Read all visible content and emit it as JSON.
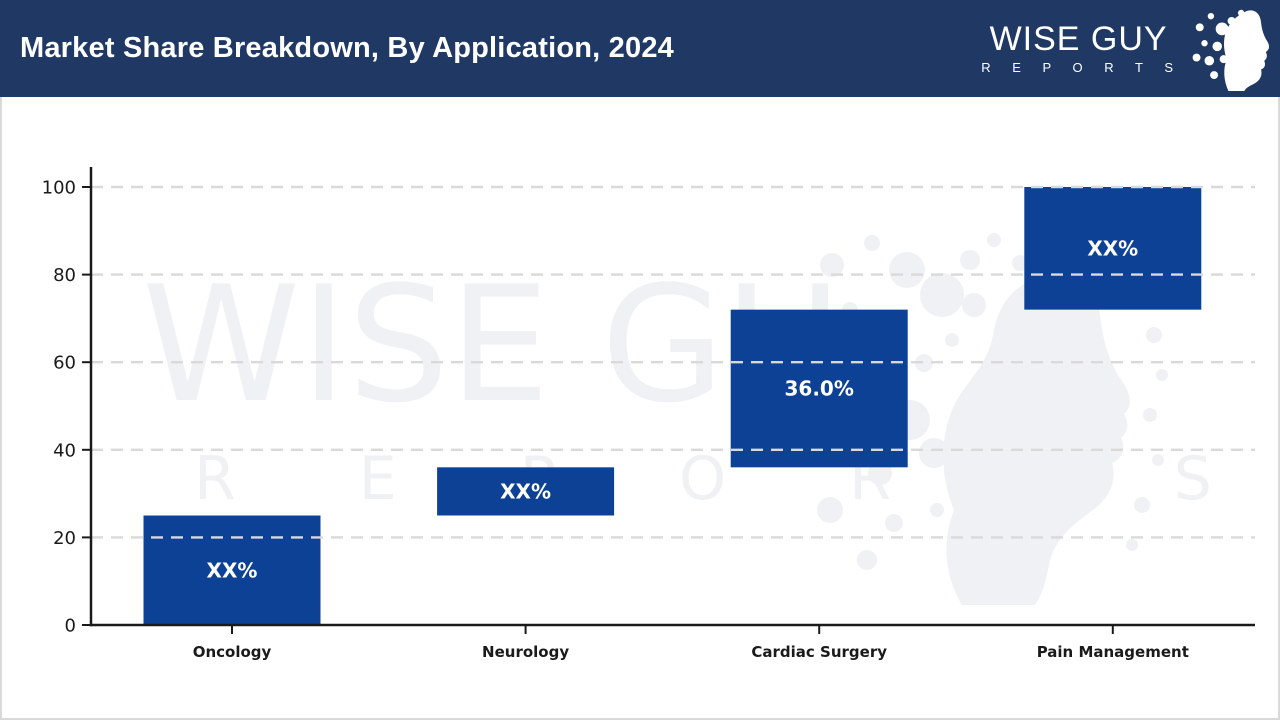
{
  "header": {
    "title": "Market Share Breakdown, By Application, 2024",
    "logo": {
      "name": "WISE GUY",
      "subtitle": "R E P O R T S"
    }
  },
  "watermark": {
    "name": "WISE GU",
    "subtitle": "R E P O R T S"
  },
  "chart_data": {
    "type": "bar",
    "subtype": "waterfall",
    "title": "Market Share Breakdown, By Application, 2024",
    "categories": [
      "Oncology",
      "Neurology",
      "Cardiac Surgery",
      "Pain Management"
    ],
    "segments": [
      {
        "category": "Oncology",
        "start": 0,
        "end": 25,
        "label": "XX%"
      },
      {
        "category": "Neurology",
        "start": 25,
        "end": 36,
        "label": "XX%"
      },
      {
        "category": "Cardiac Surgery",
        "start": 36,
        "end": 72,
        "label": "36.0%"
      },
      {
        "category": "Pain Management",
        "start": 72,
        "end": 100,
        "label": "XX%"
      }
    ],
    "ylim": [
      0,
      100
    ],
    "yticks": [
      0,
      20,
      40,
      60,
      80,
      100
    ],
    "grid": "horizontal dashed, drawn above bars",
    "legend": "none"
  },
  "colors": {
    "header_bg": "#1f3864",
    "bar": "#0d4196",
    "bar_label": "#ffffff",
    "grid": "#d9d9d9",
    "axis": "#1a1a1a",
    "tick_label": "#1a1a1a",
    "watermark": "#f0f1f4",
    "page_border": "#d9d9d9"
  }
}
